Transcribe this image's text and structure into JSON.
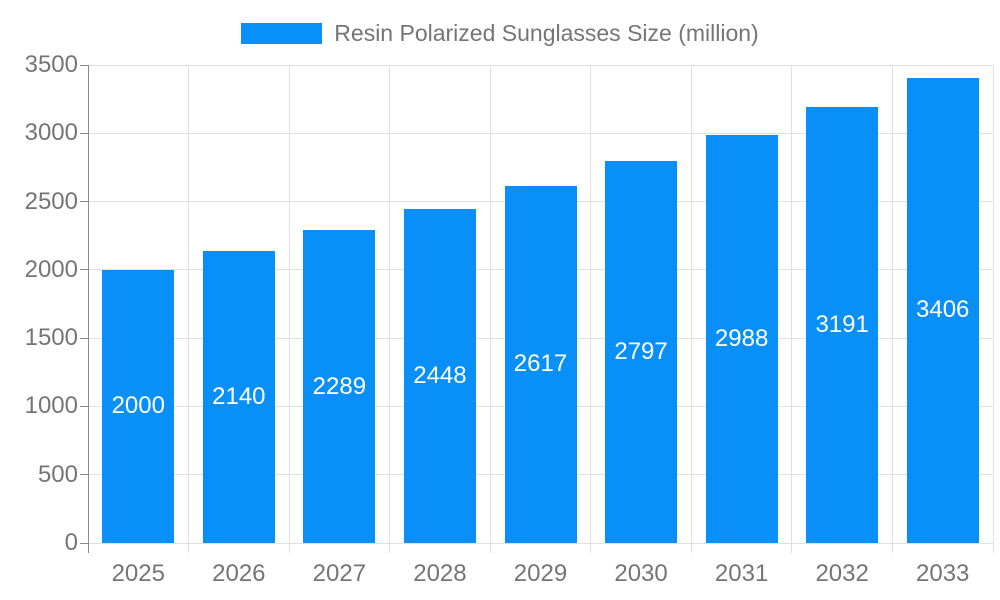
{
  "legend": {
    "label": "Resin Polarized Sunglasses Size (million)"
  },
  "chart_data": {
    "type": "bar",
    "title": "Resin Polarized Sunglasses Size (million)",
    "categories": [
      "2025",
      "2026",
      "2027",
      "2028",
      "2029",
      "2030",
      "2031",
      "2032",
      "2033"
    ],
    "values": [
      2000,
      2140,
      2289,
      2448,
      2617,
      2797,
      2988,
      3191,
      3406
    ],
    "value_labels": [
      "2000",
      "2140",
      "2289",
      "2448",
      "2617",
      "2797",
      "2988",
      "3191",
      "3406"
    ],
    "xlabel": "",
    "ylabel": "",
    "ylim": [
      0,
      3500
    ],
    "yticks": [
      0,
      500,
      1000,
      1500,
      2000,
      2500,
      3000,
      3500
    ],
    "grid": true,
    "legend_position": "top",
    "bar_color": "#0890F8",
    "value_label_color": "#ffffff",
    "axis_text_color": "#757575",
    "gridline_color": "#e0e0e0",
    "axis_line_color": "#8a8a8a"
  }
}
